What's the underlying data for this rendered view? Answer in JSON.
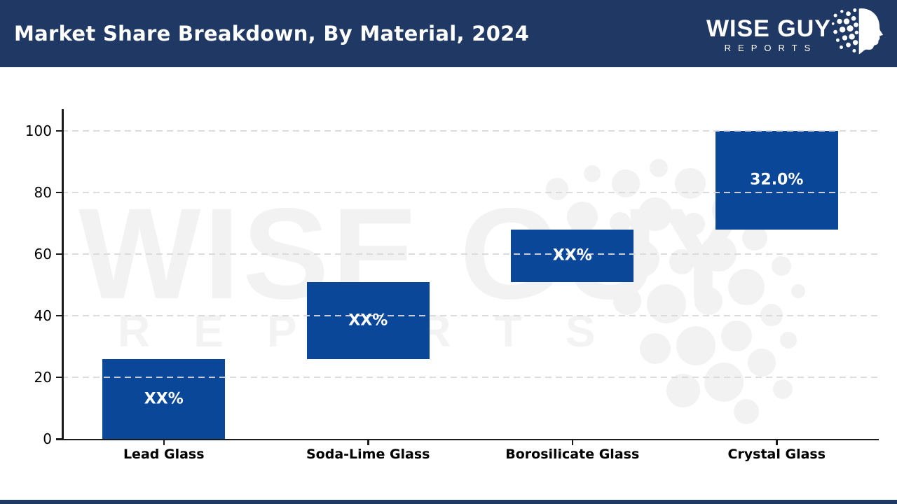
{
  "header": {
    "title": "Market Share Breakdown, By Material, 2024",
    "logo": {
      "line1": "WISE GUY",
      "line2": "REPORTS"
    }
  },
  "watermark": {
    "line1": "WISE GUY",
    "line2": "REPORTS"
  },
  "colors": {
    "header_navy": "#1f3864",
    "bar_blue": "#0b4799",
    "gridline": "#d9d9d9",
    "watermark_gray": "#f2f2f2"
  },
  "chart_data": {
    "type": "bar",
    "subtype": "waterfall",
    "title": "Market Share Breakdown, By Material, 2024",
    "categories": [
      "Lead Glass",
      "Soda-Lime Glass",
      "Borosilicate Glass",
      "Crystal Glass"
    ],
    "segments": [
      {
        "category": "Lead Glass",
        "start": 0,
        "end": 26,
        "label": "XX%"
      },
      {
        "category": "Soda-Lime Glass",
        "start": 26,
        "end": 51,
        "label": "XX%"
      },
      {
        "category": "Borosilicate Glass",
        "start": 51,
        "end": 68,
        "label": "XX%"
      },
      {
        "category": "Crystal Glass",
        "start": 68,
        "end": 100,
        "label": "32.0%"
      }
    ],
    "yticks": [
      0,
      20,
      40,
      60,
      80,
      100
    ],
    "ytick_labels": [
      "0",
      "20",
      "40",
      "60",
      "80",
      "100"
    ],
    "ylim": [
      0,
      107
    ],
    "xlabel": "",
    "ylabel": "",
    "grid": "dashed-horizontal",
    "gridlines_above_bars": true,
    "bar_color": "#0b4799",
    "bar_label_color": "#ffffff",
    "legend": "none"
  }
}
